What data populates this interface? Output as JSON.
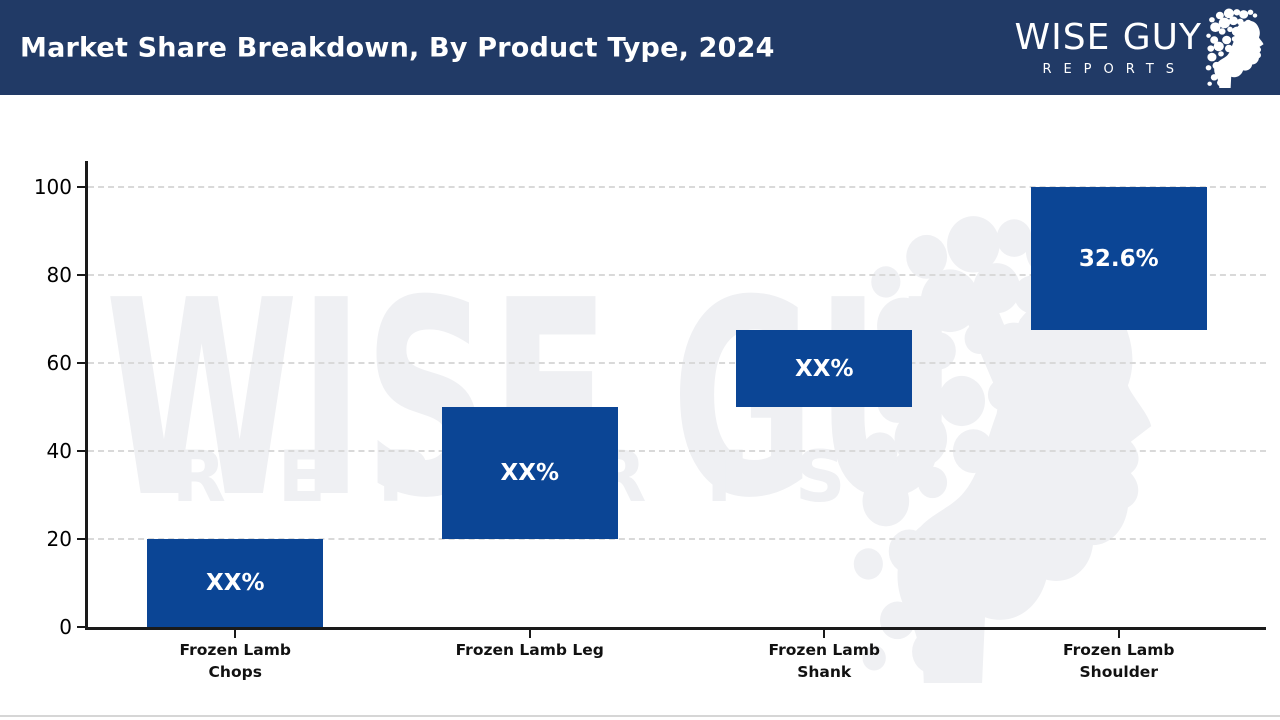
{
  "header": {
    "title": "Market Share Breakdown, By Product Type, 2024",
    "logo": {
      "name": "WISE GUY",
      "sub": "REPORTS"
    }
  },
  "watermark": {
    "line1": "WISE GUY",
    "line2": "REPORTS"
  },
  "chart_data": {
    "type": "bar",
    "variant": "floating-waterfall",
    "title": "Market Share Breakdown, By Product Type, 2024",
    "categories": [
      "Frozen Lamb Chops",
      "Frozen Lamb Leg",
      "Frozen Lamb Shank",
      "Frozen Lamb Shoulder"
    ],
    "segments": [
      {
        "category": "Frozen Lamb Chops",
        "start": 0,
        "end": 20,
        "label": "XX%"
      },
      {
        "category": "Frozen Lamb Leg",
        "start": 20,
        "end": 50,
        "label": "XX%"
      },
      {
        "category": "Frozen Lamb Shank",
        "start": 50,
        "end": 67.4,
        "label": "XX%"
      },
      {
        "category": "Frozen Lamb Shoulder",
        "start": 67.4,
        "end": 100,
        "label": "32.6%"
      }
    ],
    "ylim": [
      0,
      100
    ],
    "yticks": [
      0,
      20,
      40,
      60,
      80,
      100
    ],
    "grid": {
      "horizontal": true,
      "style": "dashed"
    },
    "legend": "none",
    "colors": {
      "bar": "#0b4595",
      "bar_label": "#ffffff",
      "axis": "#1a1a1a",
      "grid": "#d9d9d9",
      "header_bg": "#213a66",
      "watermark": "#eff0f3"
    }
  }
}
